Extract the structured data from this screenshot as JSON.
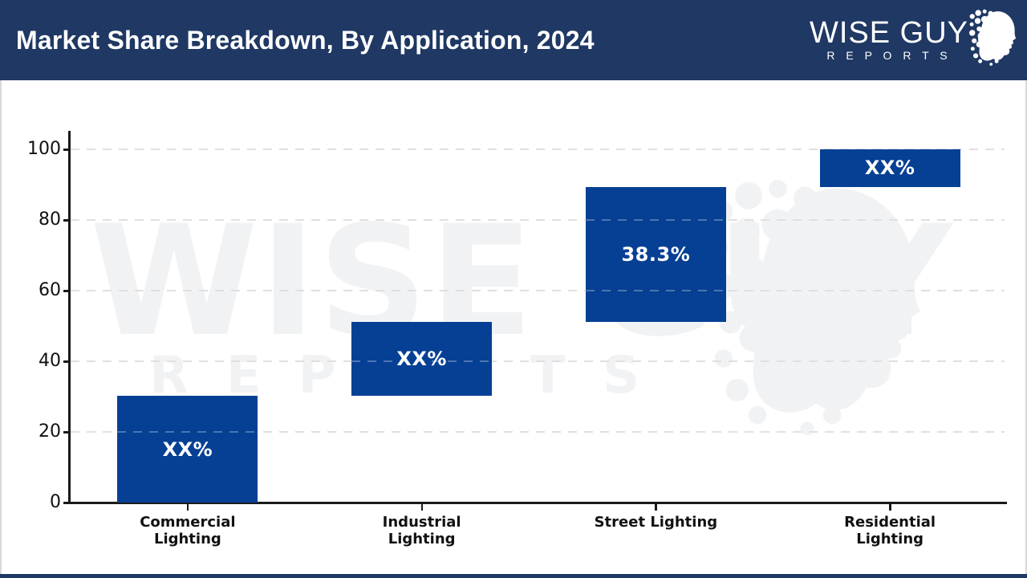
{
  "header": {
    "title": "Market Share Breakdown, By Application, 2024",
    "logo": {
      "name": "WISE GUY",
      "sub": "R E P O R T S"
    }
  },
  "watermark": {
    "name": "WISE GUY",
    "sub": "R E P O R T S"
  },
  "colors": {
    "header_bg": "#1f3864",
    "bar": "#064094",
    "grid": "#e0e0e0",
    "axis": "#1a1a1a",
    "text": "#111111",
    "bar_label": "#ffffff",
    "watermark": "#f1f2f4",
    "border": "#d9d9d9"
  },
  "icons": {
    "logo_head": "dotted-head-profile-icon",
    "watermark_head": "dotted-head-profile-icon"
  },
  "chart_data": {
    "type": "bar",
    "subtype": "floating-waterfall-columns",
    "title": "Market Share Breakdown, By Application, 2024",
    "xlabel": "",
    "ylabel": "",
    "ylim": [
      0,
      100
    ],
    "yticks": [
      0,
      20,
      40,
      60,
      80,
      100
    ],
    "grid": "horizontal-dashed",
    "legend": "none",
    "bar_color": "#064094",
    "categories": [
      "Commercial Lighting",
      "Industrial Lighting",
      "Street Lighting",
      "Residential Lighting"
    ],
    "segments": [
      {
        "category": "Commercial Lighting",
        "category_display": "Commercial\nLighting",
        "start": 0,
        "end": 30.2,
        "value": 30.2,
        "value_label": "XX%"
      },
      {
        "category": "Industrial Lighting",
        "category_display": "Industrial\nLighting",
        "start": 30.2,
        "end": 51.1,
        "value": 20.9,
        "value_label": "XX%"
      },
      {
        "category": "Street Lighting",
        "category_display": "Street Lighting",
        "start": 51.1,
        "end": 89.4,
        "value": 38.3,
        "value_label": "38.3%"
      },
      {
        "category": "Residential Lighting",
        "category_display": "Residential\nLighting",
        "start": 89.4,
        "end": 100,
        "value": 10.6,
        "value_label": "XX%"
      }
    ]
  }
}
